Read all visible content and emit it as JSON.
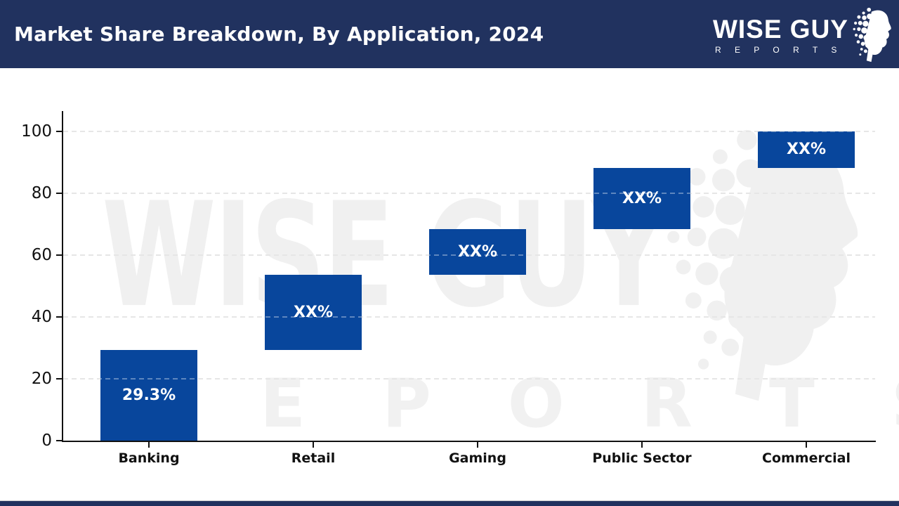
{
  "header": {
    "title": "Market Share Breakdown, By Application, 2024",
    "logo": {
      "line1": "WISE GUY",
      "line2": "R E P O R T S"
    }
  },
  "watermark": {
    "line1": "WISE GUY",
    "line2": "R E P O R T S"
  },
  "colors": {
    "header_bg": "#21325f",
    "bar_blue": "#08469c",
    "gridline": "#d9d9d9",
    "axis": "#111111",
    "bar_label": "#ffffff",
    "watermark": "#f0f0f0"
  },
  "chart_data": {
    "type": "bar",
    "subtype": "waterfall",
    "title": "Market Share Breakdown, By Application, 2024",
    "xlabel": "",
    "ylabel": "",
    "categories": [
      "Banking",
      "Retail",
      "Gaming",
      "Public Sector",
      "Commercial"
    ],
    "segments": [
      {
        "category": "Banking",
        "start": 0,
        "end": 29.3,
        "label": "29.3%"
      },
      {
        "category": "Retail",
        "start": 29.3,
        "end": 53.6,
        "label": "XX%"
      },
      {
        "category": "Gaming",
        "start": 53.6,
        "end": 68.4,
        "label": "XX%"
      },
      {
        "category": "Public Sector",
        "start": 68.4,
        "end": 88.1,
        "label": "XX%"
      },
      {
        "category": "Commercial",
        "start": 88.1,
        "end": 100,
        "label": "XX%"
      }
    ],
    "yticks": [
      0,
      20,
      40,
      60,
      80,
      100
    ],
    "ylim": [
      0,
      106
    ],
    "grid": true,
    "grid_style": "dashed",
    "legend": "none",
    "bar_color": "#08469c",
    "label_color": "#ffffff"
  }
}
